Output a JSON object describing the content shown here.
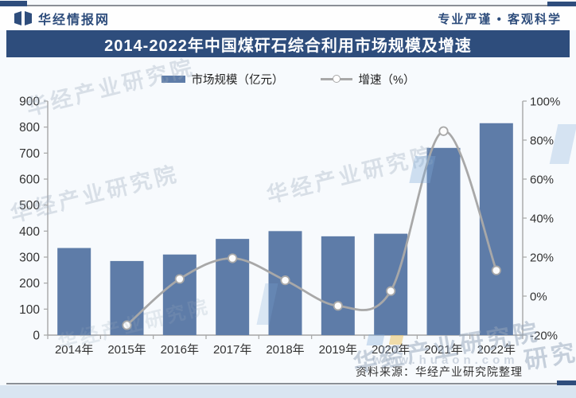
{
  "page": {
    "brand": "华经情报网",
    "slogan": "专业严谨 • 客观科学",
    "title": "2014-2022年中国煤矸石综合利用市场规模及增速",
    "source": "资料来源：华经产业研究院整理"
  },
  "legend": {
    "bar": "市场规模（亿元）",
    "line": "增速（%）"
  },
  "watermarks": {
    "org": "华经产业研究院",
    "site": "www.huaon.com",
    "partial": "研究院"
  },
  "colors": {
    "navy": "#2E4D7C",
    "bar": "#5E7CA8",
    "line": "#A8A8A8",
    "marker_fill": "#FDFDFD",
    "axis": "#A6A6A6",
    "text": "#333333"
  },
  "chart_data": {
    "type": "combo-bar-line",
    "title": "2014-2022年中国煤矸石综合利用市场规模及增速",
    "categories": [
      "2014年",
      "2015年",
      "2016年",
      "2017年",
      "2018年",
      "2019年",
      "2020年",
      "2021年",
      "2022年"
    ],
    "series": [
      {
        "name": "市场规模（亿元）",
        "type": "bar",
        "axis": "left",
        "values": [
          335,
          285,
          310,
          370,
          400,
          380,
          390,
          720,
          815
        ]
      },
      {
        "name": "增速（%）",
        "type": "line",
        "axis": "right",
        "values": [
          null,
          -14.9,
          8.8,
          19.4,
          8.1,
          -5.0,
          2.6,
          84.6,
          13.2
        ]
      }
    ],
    "left_axis": {
      "min": 0,
      "max": 900,
      "step": 100
    },
    "right_axis": {
      "min": -20,
      "max": 100,
      "step": 20,
      "suffix": "%"
    },
    "legend_position": "top",
    "grid": false
  }
}
